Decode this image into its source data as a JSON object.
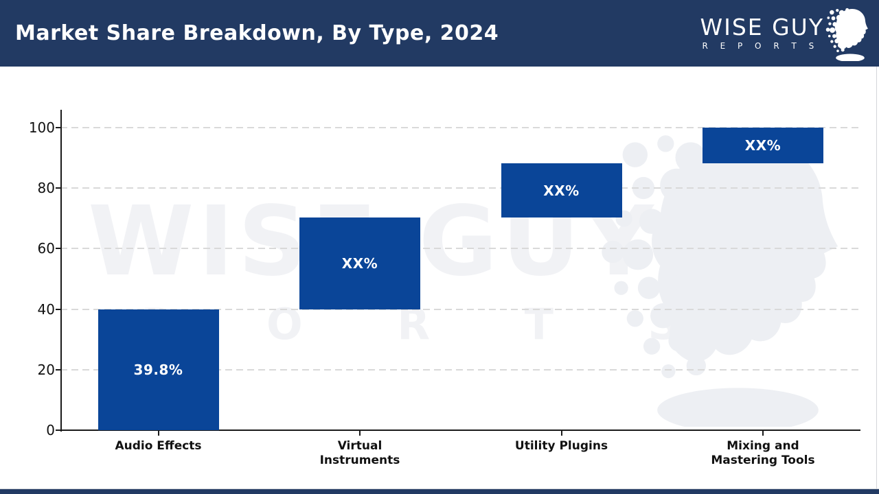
{
  "header": {
    "title": "Market Share Breakdown, By Type, 2024",
    "logo": {
      "line1": "WISE GUY",
      "line2": "R E P O R T S"
    }
  },
  "watermark": {
    "line1": "WISE GUY",
    "line2": "P O R T S"
  },
  "chart_data": {
    "type": "bar",
    "subtype": "waterfall",
    "title": "Market Share Breakdown, By Type, 2024",
    "categories": [
      "Audio Effects",
      "Virtual Instruments",
      "Utility Plugins",
      "Mixing and Mastering Tools"
    ],
    "categories_display": [
      "Audio Effects",
      "Virtual\nInstruments",
      "Utility Plugins",
      "Mixing and\nMastering Tools"
    ],
    "series": [
      {
        "name": "Market Share (%)",
        "segments": [
          {
            "start": 0,
            "end": 39.8
          },
          {
            "start": 39.8,
            "end": 70.2
          },
          {
            "start": 70.2,
            "end": 88.1
          },
          {
            "start": 88.1,
            "end": 100
          }
        ]
      }
    ],
    "bar_labels": [
      "39.8%",
      "XX%",
      "XX%",
      "XX%"
    ],
    "ylim": [
      0,
      100
    ],
    "yticks": [
      0,
      20,
      40,
      60,
      80,
      100
    ],
    "ytick_labels": [
      "0",
      "20",
      "40",
      "60",
      "80",
      "100"
    ],
    "grid": "horizontal-dashed",
    "legend": "none",
    "colors": {
      "bar": "#0a4598",
      "bar_label": "#ffffff",
      "axis": "#1a1a1a",
      "grid": "#d9d9d9",
      "header_bg": "#223a63",
      "watermark": "#f1f2f5"
    }
  }
}
